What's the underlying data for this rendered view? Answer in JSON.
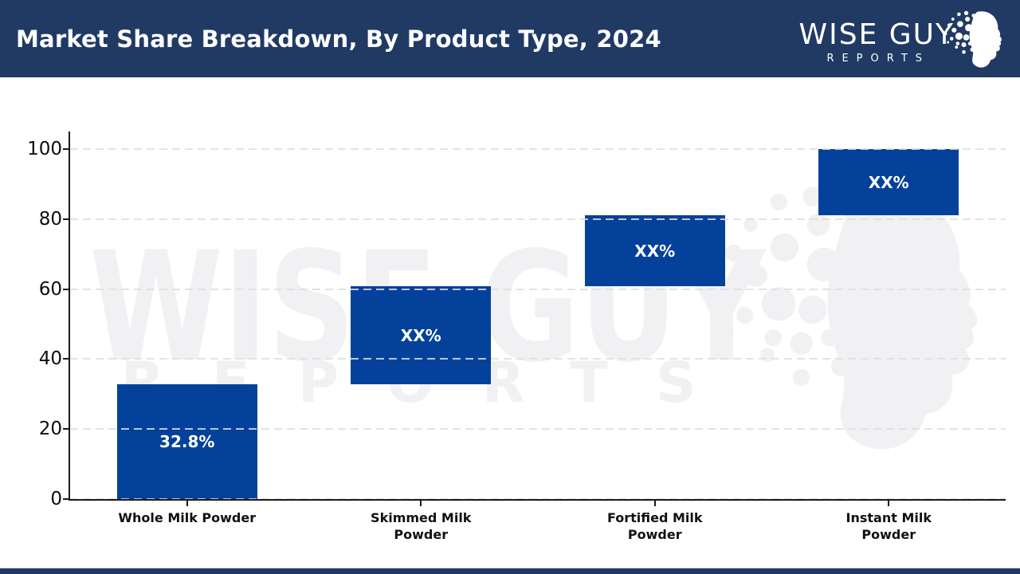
{
  "header": {
    "title": "Market Share Breakdown, By Product Type, 2024"
  },
  "logo": {
    "line1": "WISE GUY",
    "line2": "REPORTS",
    "icon": "dotted-head-profile"
  },
  "watermark": {
    "line1": "WISE GUY",
    "line2": "REPORTS",
    "icon": "dotted-head-profile"
  },
  "chart_data": {
    "type": "bar",
    "subtype": "floating-waterfall",
    "title": "Market Share Breakdown, By Product Type, 2024",
    "categories": [
      "Whole Milk Powder",
      "Skimmed Milk Powder",
      "Fortified Milk Powder",
      "Instant Milk Powder"
    ],
    "category_label_lines": [
      [
        "Whole Milk Powder"
      ],
      [
        "Skimmed Milk",
        "Powder"
      ],
      [
        "Fortified Milk",
        "Powder"
      ],
      [
        "Instant Milk",
        "Powder"
      ]
    ],
    "segments": [
      {
        "category": "Whole Milk Powder",
        "start": 0,
        "end": 32.8,
        "label": "32.8%"
      },
      {
        "category": "Skimmed Milk Powder",
        "start": 32.8,
        "end": 60.8,
        "label": "XX%"
      },
      {
        "category": "Fortified Milk Powder",
        "start": 60.8,
        "end": 81.0,
        "label": "XX%"
      },
      {
        "category": "Instant Milk Powder",
        "start": 81.0,
        "end": 100,
        "label": "XX%"
      }
    ],
    "ylim": [
      0,
      100
    ],
    "yticks": [
      0,
      20,
      40,
      60,
      80,
      100
    ],
    "xlabel": "",
    "ylabel": "",
    "legend": "none",
    "grid": "horizontal-dashed",
    "colors": {
      "bar": "#04419a",
      "bar_label": "#ffffff",
      "grid": "#dedede",
      "axis": "#1a1a1a",
      "header_bg": "#203a64",
      "footer_bg": "#203a64",
      "watermark": "#f1f1f4",
      "title_text": "#ffffff",
      "tick_text": "#0d0d0d"
    }
  }
}
